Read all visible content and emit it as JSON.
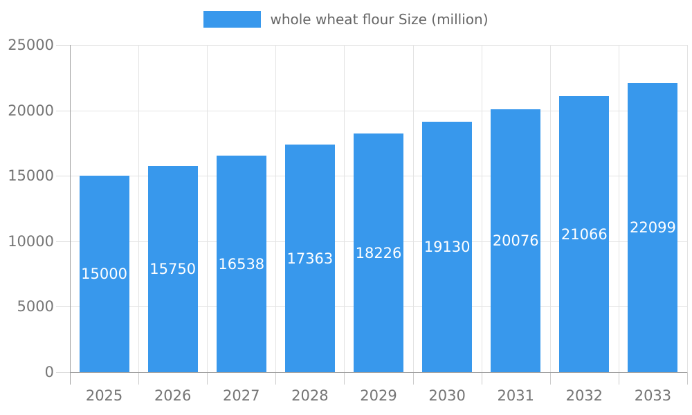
{
  "legend": {
    "label": "whole wheat flour Size (million)",
    "swatch_color": "#3898ec"
  },
  "chart_data": {
    "type": "bar",
    "title": "",
    "categories": [
      "2025",
      "2026",
      "2027",
      "2028",
      "2029",
      "2030",
      "2031",
      "2032",
      "2033"
    ],
    "series": [
      {
        "name": "whole wheat flour Size (million)",
        "values": [
          15000,
          15750,
          16538,
          17363,
          18226,
          19130,
          20076,
          21066,
          22099
        ],
        "color": "#3898ec"
      }
    ],
    "data_labels": [
      "15000",
      "15750",
      "16538",
      "17363",
      "18226",
      "19130",
      "20076",
      "21066",
      "22099"
    ],
    "data_label_color": "#ffffff",
    "data_label_position": "inside-center",
    "xlabel": "",
    "ylabel": "",
    "ylim": [
      0,
      25000
    ],
    "ytick_values": [
      0,
      5000,
      10000,
      15000,
      20000,
      25000
    ],
    "ytick_labels": [
      "0",
      "5000",
      "10000",
      "15000",
      "20000",
      "25000"
    ],
    "grid": "on",
    "legend_position": "top-center"
  },
  "colors": {
    "bar": "#3898ec",
    "axis": "#9e9e9e",
    "gridline": "#e3e3e3",
    "tick_text": "#757575",
    "legend_text": "#666666",
    "background": "#ffffff"
  }
}
